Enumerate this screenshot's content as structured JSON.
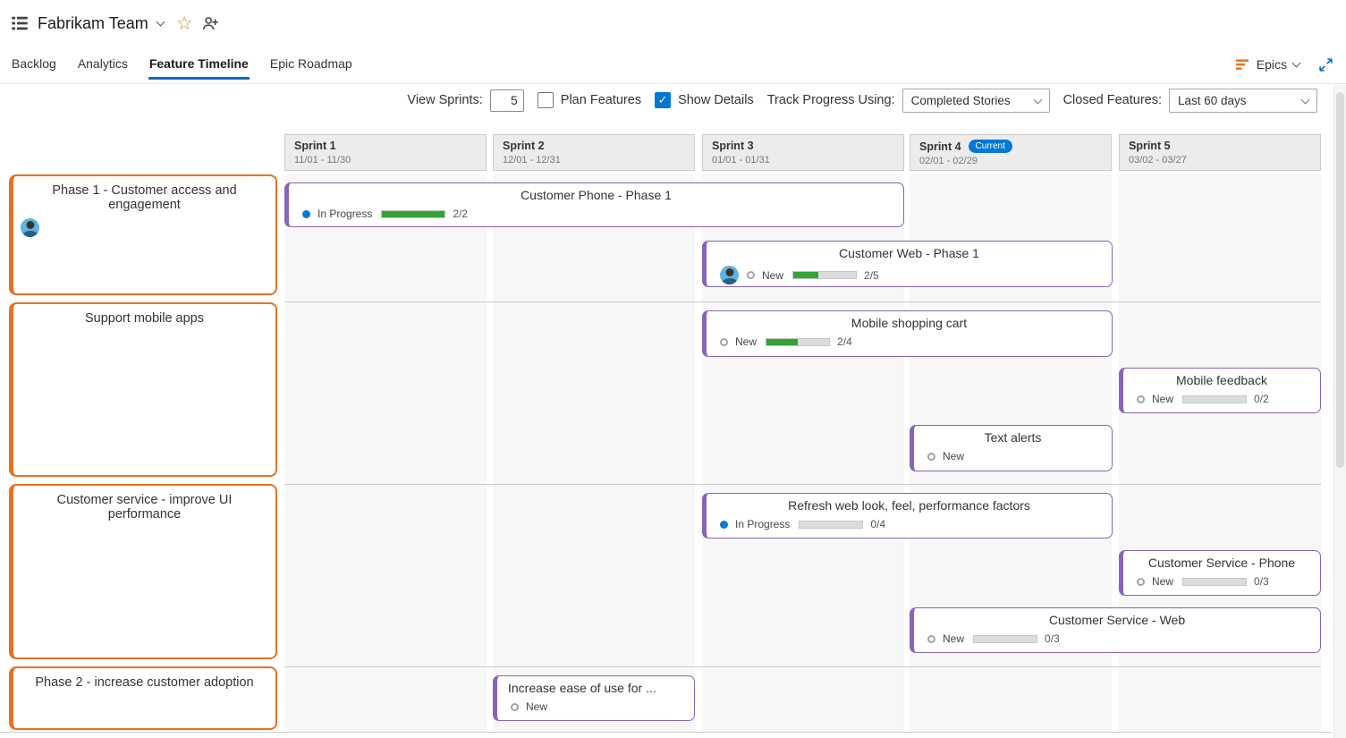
{
  "header": {
    "team_name": "Fabrikam Team"
  },
  "icons": {
    "star": "☆",
    "check": "✓"
  },
  "tabs": [
    {
      "label": "Backlog"
    },
    {
      "label": "Analytics"
    },
    {
      "label": "Feature Timeline"
    },
    {
      "label": "Epic Roadmap"
    }
  ],
  "view_switcher": {
    "label": "Epics"
  },
  "toolbar": {
    "view_sprints_label": "View Sprints:",
    "view_sprints_value": "5",
    "plan_features_label": "Plan Features",
    "show_details_label": "Show Details",
    "track_progress_label": "Track Progress Using:",
    "track_progress_value": "Completed Stories",
    "closed_features_label": "Closed Features:",
    "closed_features_value": "Last 60 days"
  },
  "sprints": [
    {
      "name": "Sprint 1",
      "dates": "11/01 - 11/30"
    },
    {
      "name": "Sprint 2",
      "dates": "12/01 - 12/31"
    },
    {
      "name": "Sprint 3",
      "dates": "01/01 - 01/31"
    },
    {
      "name": "Sprint 4",
      "dates": "02/01 - 02/29",
      "badge": "Current"
    },
    {
      "name": "Sprint 5",
      "dates": "03/02 - 03/27"
    }
  ],
  "epics": [
    {
      "title": "Phase 1 - Customer access and engagement"
    },
    {
      "title": "Support mobile apps"
    },
    {
      "title": "Customer service - improve UI performance"
    },
    {
      "title": "Phase 2 - increase customer adoption"
    }
  ],
  "features": [
    {
      "title": "Customer Phone - Phase 1",
      "status": "In Progress",
      "progress": "2/2",
      "progress_pct": 100
    },
    {
      "title": "Customer Web - Phase 1",
      "status": "New",
      "progress": "2/5",
      "progress_pct": 40
    },
    {
      "title": "Mobile shopping cart",
      "status": "New",
      "progress": "2/4",
      "progress_pct": 50
    },
    {
      "title": "Mobile feedback",
      "status": "New",
      "progress": "0/2",
      "progress_pct": 0
    },
    {
      "title": "Text alerts",
      "status": "New"
    },
    {
      "title": "Refresh web look, feel, performance factors",
      "status": "In Progress",
      "progress": "0/4",
      "progress_pct": 0
    },
    {
      "title": "Customer Service - Phone",
      "status": "New",
      "progress": "0/3",
      "progress_pct": 0
    },
    {
      "title": "Customer Service - Web",
      "status": "New",
      "progress": "0/3",
      "progress_pct": 0
    },
    {
      "title": "Increase ease of use for ...",
      "status": "New"
    }
  ],
  "colors": {
    "accent": "#0078d4",
    "feature_border": "#8764b8",
    "epic_border": "#e87025",
    "progress_green": "#34a336"
  }
}
